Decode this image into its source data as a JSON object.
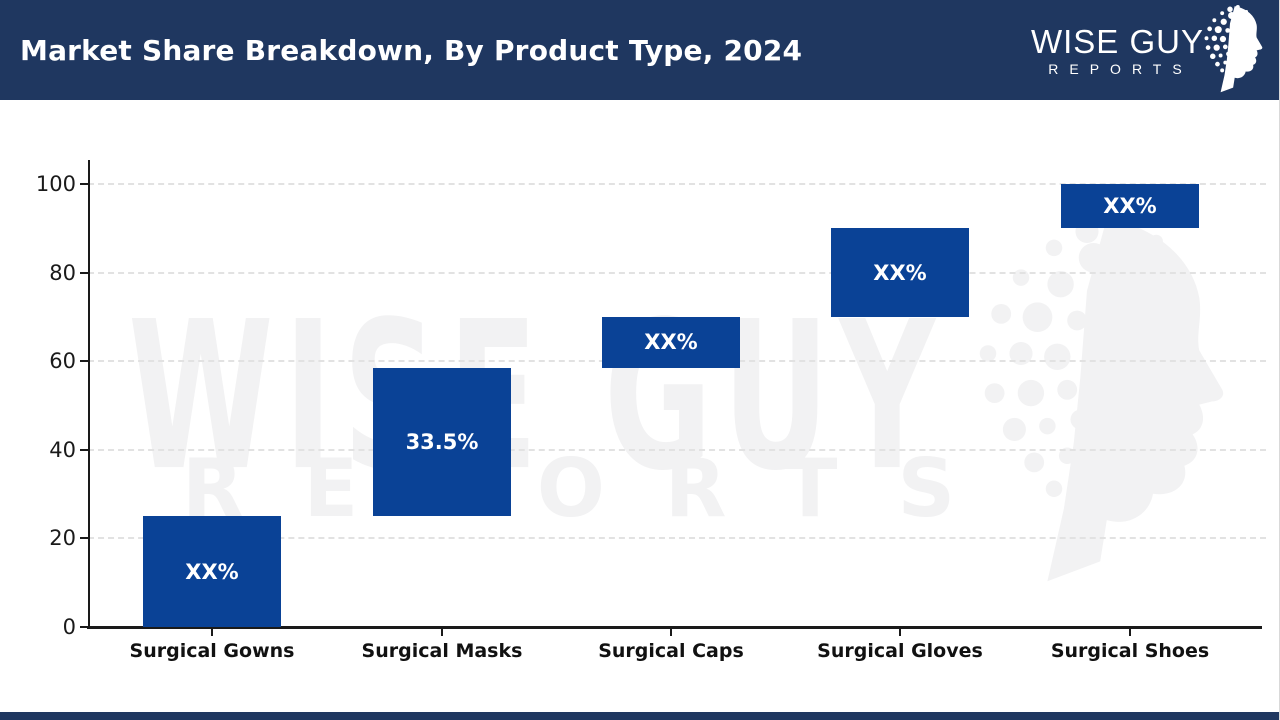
{
  "header": {
    "title": "Market Share Breakdown, By Product Type, 2024",
    "logo": {
      "line1": "WISE GUY",
      "line2": "REPORTS"
    }
  },
  "watermark": {
    "line1": "WISE GUY",
    "line2": "REPORTS"
  },
  "chart_data": {
    "type": "bar",
    "subtype": "floating-segment (waterfall-style cumulative market share)",
    "title": "Market Share Breakdown, By Product Type, 2024",
    "categories": [
      "Surgical Gowns",
      "Surgical Masks",
      "Surgical Caps",
      "Surgical Gloves",
      "Surgical Shoes"
    ],
    "segments": [
      {
        "category": "Surgical Gowns",
        "start": 0,
        "end": 25,
        "label": "XX%"
      },
      {
        "category": "Surgical Masks",
        "start": 25,
        "end": 58.5,
        "label": "33.5%"
      },
      {
        "category": "Surgical Caps",
        "start": 58.5,
        "end": 70,
        "label": "XX%"
      },
      {
        "category": "Surgical Gloves",
        "start": 70,
        "end": 90,
        "label": "XX%"
      },
      {
        "category": "Surgical Shoes",
        "start": 90,
        "end": 100,
        "label": "XX%"
      }
    ],
    "yticks": [
      0,
      20,
      40,
      60,
      80,
      100
    ],
    "ylim": [
      0,
      105
    ],
    "xlabel": "",
    "ylabel": "",
    "grid": "horizontal-dashed",
    "legend": "none",
    "bar_color": "#0a4296",
    "bar_label_color": "#ffffff"
  },
  "colors": {
    "header_bg": "#1f3760",
    "footer_bg": "#1f3760",
    "bar": "#0a4296",
    "watermark": "#f2f2f3",
    "grid": "#e2e2e2",
    "axis": "#1a1a1a"
  }
}
